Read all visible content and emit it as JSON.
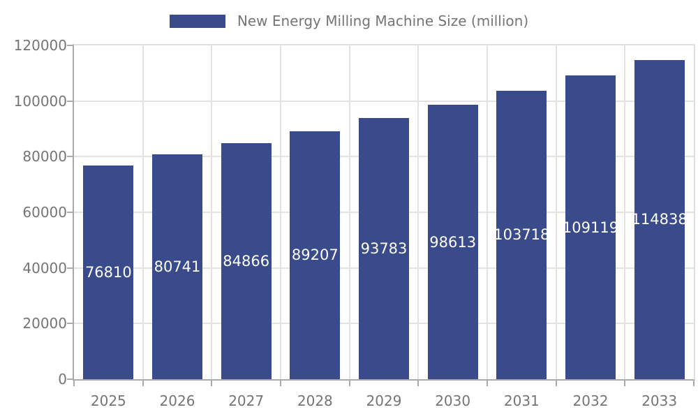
{
  "chart_data": {
    "type": "bar",
    "title": "New Energy Milling Machine Size (million)",
    "categories": [
      "2025",
      "2026",
      "2027",
      "2028",
      "2029",
      "2030",
      "2031",
      "2032",
      "2033"
    ],
    "series": [
      {
        "name": "New Energy Milling Machine Size (million)",
        "values": [
          76810,
          80741,
          84866,
          89207,
          93783,
          98613,
          103718,
          109119,
          114838
        ]
      }
    ],
    "bar_value_labels": [
      "76810",
      "80741",
      "84866",
      "89207",
      "93783",
      "98613",
      "103718",
      "109119",
      "114838"
    ],
    "xlabel": "",
    "ylabel": "",
    "ylim": [
      0,
      120000
    ],
    "yticks": [
      0,
      20000,
      40000,
      60000,
      80000,
      100000,
      120000
    ],
    "ytick_labels": [
      "0",
      "20000",
      "40000",
      "60000",
      "80000",
      "100000",
      "120000"
    ],
    "grid": true,
    "legend_position": "top-center"
  },
  "style": {
    "bar_color": "#3A4B8C",
    "bar_label_color": "#ffffff",
    "grid_color": "#e3e3e3",
    "plot_border_color": "#e0e0e0",
    "axis_color": "#aaaaaa",
    "tick_text_color": "#757575",
    "legend_text_color": "#757575",
    "background_color": "#ffffff"
  }
}
